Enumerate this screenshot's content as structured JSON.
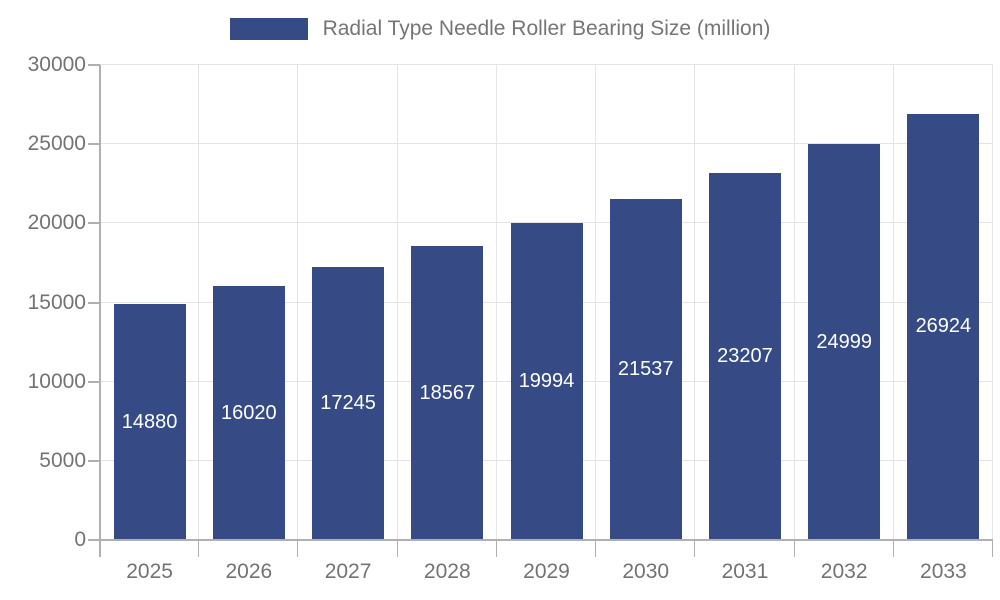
{
  "legend": {
    "label": "Radial Type Needle Roller Bearing Size (million)"
  },
  "chart_data": {
    "type": "bar",
    "categories": [
      "2025",
      "2026",
      "2027",
      "2028",
      "2029",
      "2030",
      "2031",
      "2032",
      "2033"
    ],
    "values": [
      14880,
      16020,
      17245,
      18567,
      19994,
      21537,
      23207,
      24999,
      26924
    ],
    "series": [
      {
        "name": "Radial Type Needle Roller Bearing Size (million)",
        "values": [
          14880,
          16020,
          17245,
          18567,
          19994,
          21537,
          23207,
          24999,
          26924
        ]
      }
    ],
    "title": "",
    "xlabel": "",
    "ylabel": "",
    "ylim": [
      0,
      30000
    ],
    "yticks": [
      0,
      5000,
      10000,
      15000,
      20000,
      25000,
      30000
    ],
    "grid": true,
    "legend_position": "top",
    "value_labels": "inside-center"
  },
  "colors": {
    "bar": "#364a85",
    "axis": "#b0b0b0",
    "grid": "#e4e4e6",
    "tick_text": "#737373",
    "legend_text": "#757575",
    "value_label_text": "#ffffff"
  }
}
